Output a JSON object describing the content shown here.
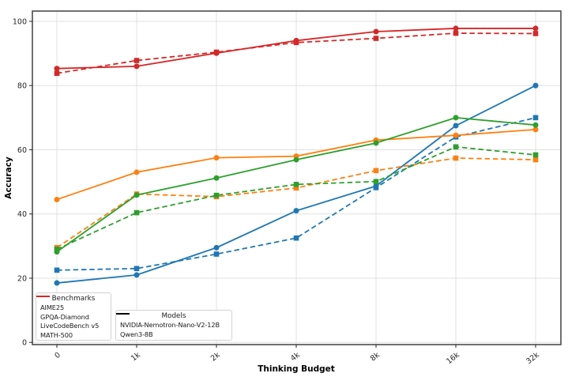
{
  "chart_data": {
    "type": "line",
    "title": "",
    "xlabel": "Thinking Budget",
    "ylabel": "Accuracy",
    "categories": [
      "0",
      "1k",
      "2k",
      "4k",
      "8k",
      "16k",
      "32k"
    ],
    "y_ticks": [
      0,
      20,
      40,
      60,
      80,
      100
    ],
    "ylim": [
      -1,
      103
    ],
    "grid": true,
    "style": {
      "grid_color": "#e0e0e0",
      "spine_color": "#4d4d4d",
      "tick_color": "#262626",
      "blue": "#1f77b4",
      "orange": "#ff7f0e",
      "green": "#2ca02c",
      "red": "#d62728",
      "black": "#000000"
    },
    "series": [
      {
        "benchmark": "AIME25",
        "model": "NVIDIA-Nemotron-Nano-V2-12B",
        "line": "solid",
        "marker": "circle",
        "color": "#1f77b4",
        "values": [
          18.5,
          21.0,
          29.5,
          41.0,
          48.7,
          67.5,
          80.0
        ]
      },
      {
        "benchmark": "AIME25",
        "model": "Qwen3-8B",
        "line": "dashed",
        "marker": "square",
        "color": "#1f77b4",
        "values": [
          22.5,
          23.0,
          27.5,
          32.5,
          48.2,
          64.0,
          70.0
        ]
      },
      {
        "benchmark": "GPQA-Diamond",
        "model": "NVIDIA-Nemotron-Nano-V2-12B",
        "line": "solid",
        "marker": "circle",
        "color": "#ff7f0e",
        "values": [
          44.5,
          53.0,
          57.5,
          58.0,
          63.0,
          64.5,
          66.3
        ]
      },
      {
        "benchmark": "GPQA-Diamond",
        "model": "Qwen3-8B",
        "line": "dashed",
        "marker": "square",
        "color": "#ff7f0e",
        "values": [
          29.5,
          46.2,
          45.4,
          48.1,
          53.5,
          57.4,
          56.9
        ]
      },
      {
        "benchmark": "LiveCodeBench v5",
        "model": "NVIDIA-Nemotron-Nano-V2-12B",
        "line": "solid",
        "marker": "circle",
        "color": "#2ca02c",
        "values": [
          28.2,
          45.9,
          51.2,
          56.9,
          62.1,
          70.0,
          67.7
        ]
      },
      {
        "benchmark": "LiveCodeBench v5",
        "model": "Qwen3-8B",
        "line": "dashed",
        "marker": "square",
        "color": "#2ca02c",
        "values": [
          29.0,
          40.4,
          45.8,
          49.2,
          50.1,
          60.9,
          58.4
        ]
      },
      {
        "benchmark": "MATH-500",
        "model": "NVIDIA-Nemotron-Nano-V2-12B",
        "line": "solid",
        "marker": "circle",
        "color": "#d62728",
        "values": [
          85.3,
          86.0,
          90.1,
          94.0,
          96.8,
          97.8,
          97.8
        ]
      },
      {
        "benchmark": "MATH-500",
        "model": "Qwen3-8B",
        "line": "dashed",
        "marker": "square",
        "color": "#d62728",
        "values": [
          83.8,
          87.8,
          90.4,
          93.4,
          94.7,
          96.3,
          96.2
        ]
      }
    ],
    "legend_benchmarks": {
      "title": "Benchmarks",
      "entries": [
        {
          "label": "AIME25",
          "color": "#1f77b4",
          "dash": "solid"
        },
        {
          "label": "GPQA-Diamond",
          "color": "#ff7f0e",
          "dash": "solid"
        },
        {
          "label": "LiveCodeBench v5",
          "color": "#2ca02c",
          "dash": "solid"
        },
        {
          "label": "MATH-500",
          "color": "#d62728",
          "dash": "solid"
        }
      ]
    },
    "legend_models": {
      "title": "Models",
      "entries": [
        {
          "label": "NVIDIA-Nemotron-Nano-V2-12B",
          "color": "#000000",
          "dash": "solid"
        },
        {
          "label": "Qwen3-8B",
          "color": "#000000",
          "dash": "dashed"
        }
      ]
    }
  }
}
